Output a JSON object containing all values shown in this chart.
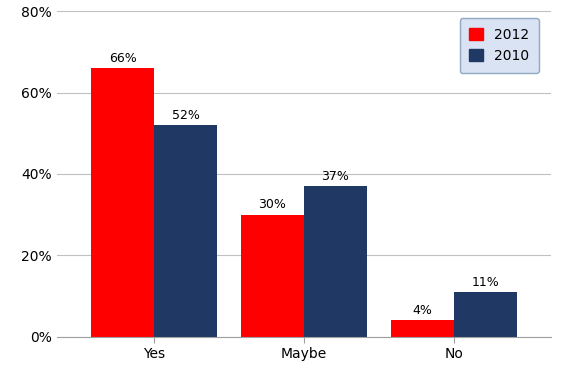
{
  "categories": [
    "Yes",
    "Maybe",
    "No"
  ],
  "series": {
    "2012": [
      66,
      30,
      4
    ],
    "2010": [
      52,
      37,
      11
    ]
  },
  "bar_colors": {
    "2012": "#FF0000",
    "2010": "#1F3864"
  },
  "ylim": [
    0,
    80
  ],
  "yticks": [
    0,
    20,
    40,
    60,
    80
  ],
  "ytick_labels": [
    "0%",
    "20%",
    "40%",
    "60%",
    "80%"
  ],
  "bar_width": 0.42,
  "bar_gap": 0.0,
  "legend_facecolor": "#DAE3F3",
  "legend_edgecolor": "#8EA9C1",
  "grid_color": "#C0C0C0",
  "label_fontsize": 9,
  "tick_fontsize": 10,
  "figsize": [
    5.68,
    3.74
  ],
  "dpi": 100
}
